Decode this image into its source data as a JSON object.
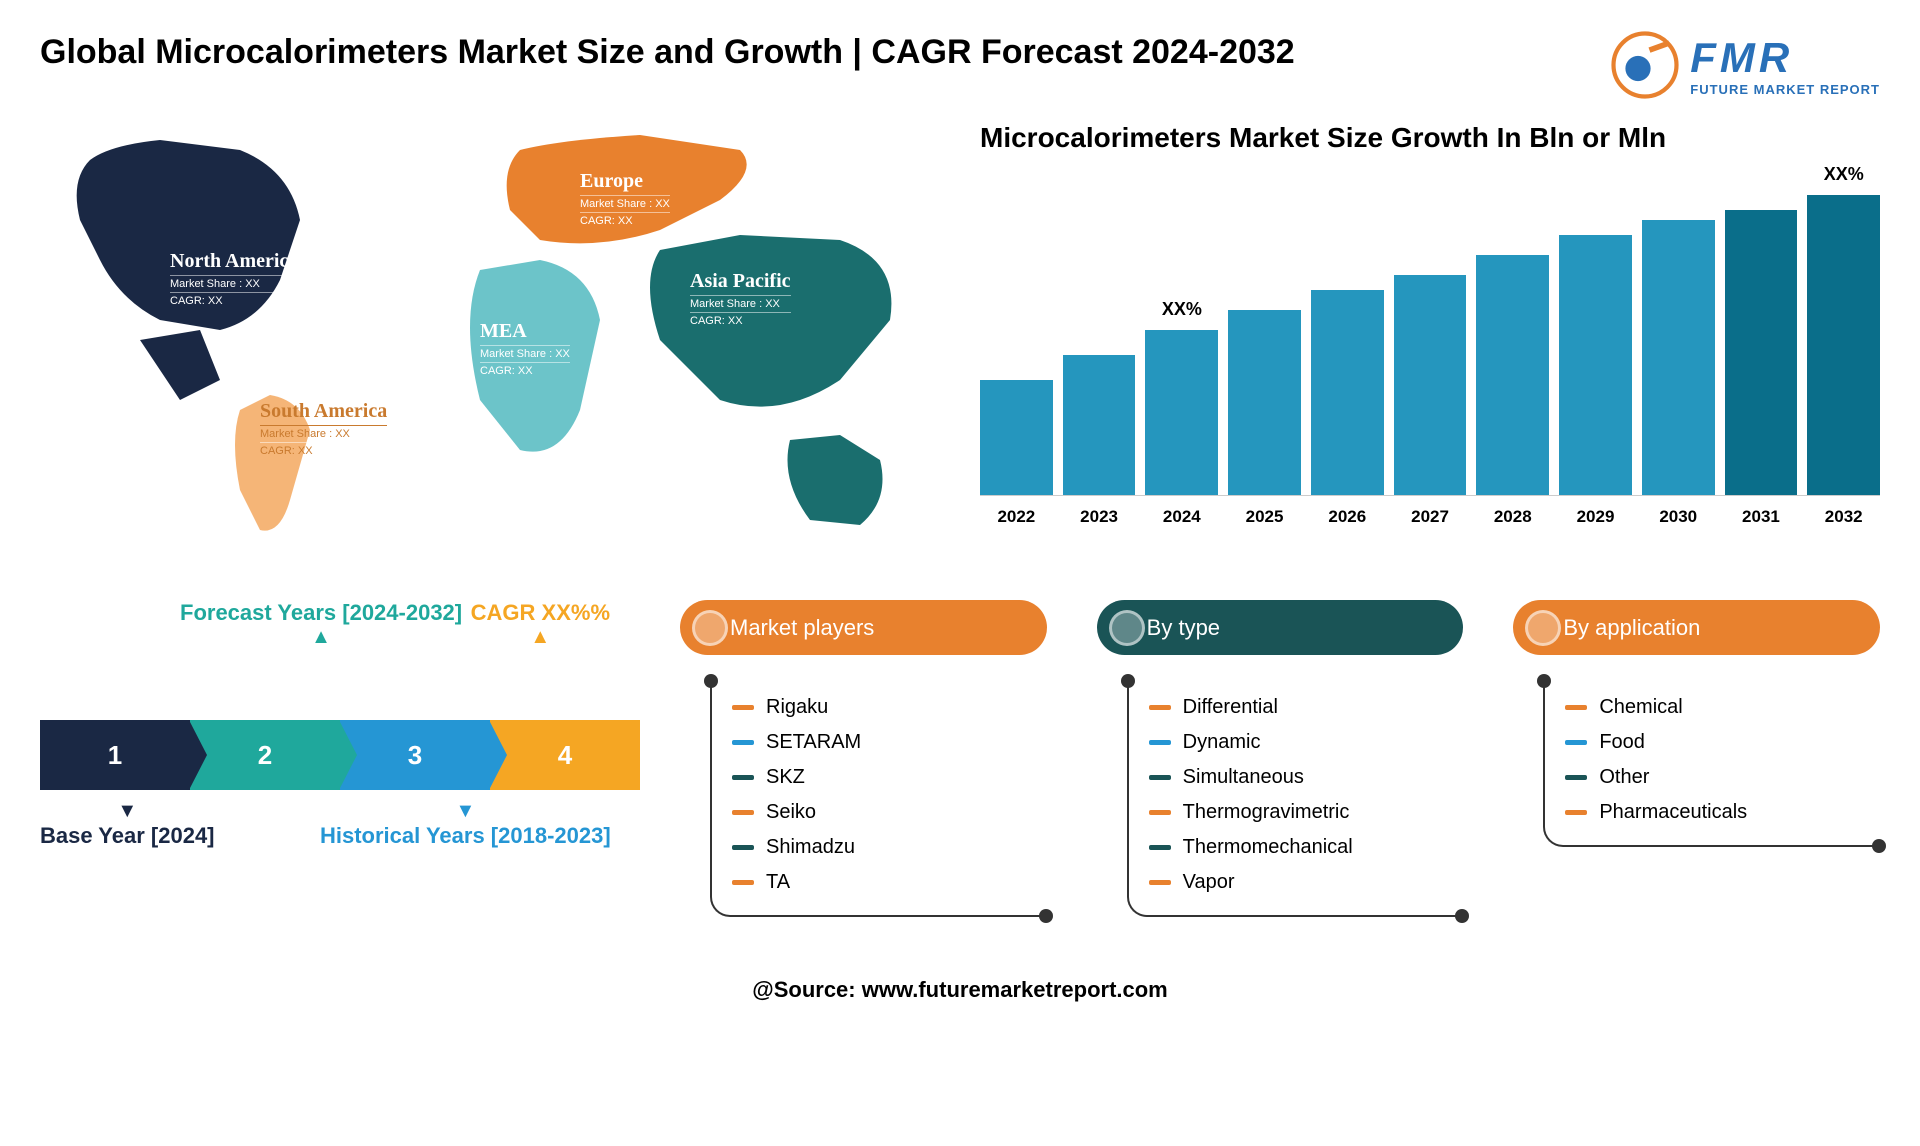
{
  "title": "Global Microcalorimeters Market Size and Growth | CAGR Forecast 2024-2032",
  "logo": {
    "main": "FMR",
    "sub": "FUTURE MARKET REPORT"
  },
  "colors": {
    "bar_primary": "#2596be",
    "bar_dark": "#0a6e8a",
    "step1": "#1a2844",
    "step2": "#1fa89c",
    "step3": "#2596d4",
    "step4": "#f5a623",
    "cat_orange": "#e8812e",
    "cat_teal": "#1a5456",
    "logo_orange": "#e8812e",
    "logo_blue": "#2970b8",
    "bullet_orange": "#e8812e",
    "bullet_blue": "#2596d4",
    "bullet_teal": "#1a5456"
  },
  "map": {
    "regions": [
      {
        "name": "North America",
        "share": "Market Share : XX",
        "cagr": "CAGR: XX",
        "color": "#1a2844",
        "label_color": "#ffffff"
      },
      {
        "name": "South America",
        "share": "Market Share : XX",
        "cagr": "CAGR: XX",
        "color": "#f5b577",
        "label_color": "#c97a2e"
      },
      {
        "name": "Europe",
        "share": "Market Share : XX",
        "cagr": "CAGR: XX",
        "color": "#e8812e",
        "label_color": "#ffffff"
      },
      {
        "name": "MEA",
        "share": "Market Share : XX",
        "cagr": "CAGR: XX",
        "color": "#6cc4c9",
        "label_color": "#ffffff"
      },
      {
        "name": "Asia Pacific",
        "share": "Market Share : XX",
        "cagr": "CAGR: XX",
        "color": "#1a6e6e",
        "label_color": "#ffffff"
      }
    ]
  },
  "chart": {
    "title": "Microcalorimeters Market Size Growth In Bln or Mln",
    "type": "bar",
    "years": [
      "2022",
      "2023",
      "2024",
      "2025",
      "2026",
      "2027",
      "2028",
      "2029",
      "2030",
      "2031",
      "2032"
    ],
    "values": [
      115,
      140,
      165,
      185,
      205,
      220,
      240,
      260,
      275,
      285,
      300
    ],
    "max_height": 300,
    "annotations": [
      {
        "year": "2024",
        "text": "XX%"
      },
      {
        "year": "2032",
        "text": "XX%"
      }
    ],
    "dark_bars": [
      "2031",
      "2032"
    ]
  },
  "timeline": {
    "steps": [
      "1",
      "2",
      "3",
      "4"
    ],
    "annotations": [
      {
        "step": 0,
        "text": "Base Year [2024]",
        "color": "#1a2844",
        "pos": "bottom"
      },
      {
        "step": 1,
        "text": "Forecast Years [2024-2032]",
        "color": "#1fa89c",
        "pos": "top"
      },
      {
        "step": 2,
        "text": "Historical Years [2018-2023]",
        "color": "#2596d4",
        "pos": "bottom"
      },
      {
        "step": 3,
        "text": "CAGR XX%%",
        "color": "#f5a623",
        "pos": "top"
      }
    ]
  },
  "categories": [
    {
      "title": "Market players",
      "header_color": "#e8812e",
      "items": [
        {
          "label": "Rigaku",
          "color": "#e8812e"
        },
        {
          "label": "SETARAM",
          "color": "#2596d4"
        },
        {
          "label": "SKZ",
          "color": "#1a5456"
        },
        {
          "label": "Seiko",
          "color": "#e8812e"
        },
        {
          "label": "Shimadzu",
          "color": "#1a5456"
        },
        {
          "label": "TA",
          "color": "#e8812e"
        }
      ]
    },
    {
      "title": "By type",
      "header_color": "#1a5456",
      "items": [
        {
          "label": "Differential",
          "color": "#e8812e"
        },
        {
          "label": "Dynamic",
          "color": "#2596d4"
        },
        {
          "label": "Simultaneous",
          "color": "#1a5456"
        },
        {
          "label": "Thermogravimetric",
          "color": "#e8812e"
        },
        {
          "label": "Thermomechanical",
          "color": "#1a5456"
        },
        {
          "label": "Vapor",
          "color": "#e8812e"
        }
      ]
    },
    {
      "title": "By application",
      "header_color": "#e8812e",
      "items": [
        {
          "label": "Chemical",
          "color": "#e8812e"
        },
        {
          "label": "Food",
          "color": "#2596d4"
        },
        {
          "label": "Other",
          "color": "#1a5456"
        },
        {
          "label": "Pharmaceuticals",
          "color": "#e8812e"
        }
      ]
    }
  ],
  "source": "@Source: www.futuremarketreport.com"
}
